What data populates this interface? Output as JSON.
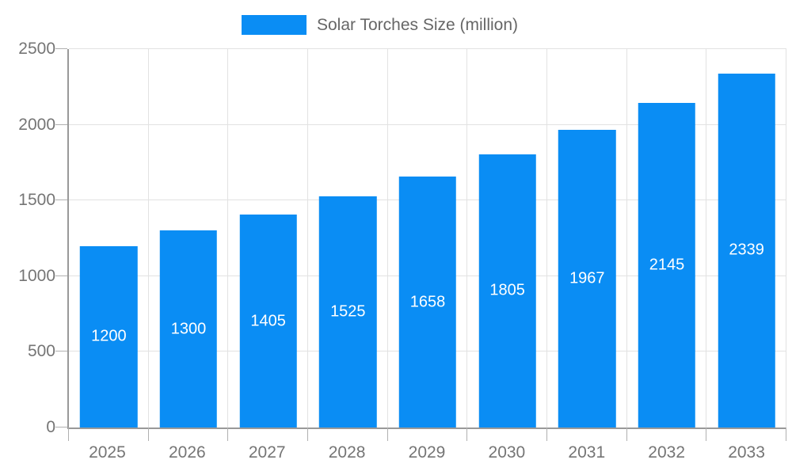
{
  "legend": {
    "label": "Solar Torches Size (million)"
  },
  "chart_data": {
    "type": "bar",
    "title": "",
    "series_name": "Solar Torches Size (million)",
    "categories": [
      "2025",
      "2026",
      "2027",
      "2028",
      "2029",
      "2030",
      "2031",
      "2032",
      "2033"
    ],
    "values": [
      1200,
      1300,
      1405,
      1525,
      1658,
      1805,
      1967,
      2145,
      2339
    ],
    "xlabel": "",
    "ylabel": "",
    "ylim": [
      0,
      2500
    ],
    "yticks": [
      0,
      500,
      1000,
      1500,
      2000,
      2500
    ],
    "grid": true,
    "legend_position": "top-center",
    "bar_color": "#0a8df4",
    "value_label_color": "#ffffff",
    "value_label_position": "inside-center"
  },
  "colors": {
    "background": "#ffffff",
    "bar": "#0a8df4",
    "axis": "#999999",
    "gridline": "#e2e2e2",
    "tick": "#b0b0b0",
    "axis_text": "#757575",
    "legend_text": "#666666"
  }
}
